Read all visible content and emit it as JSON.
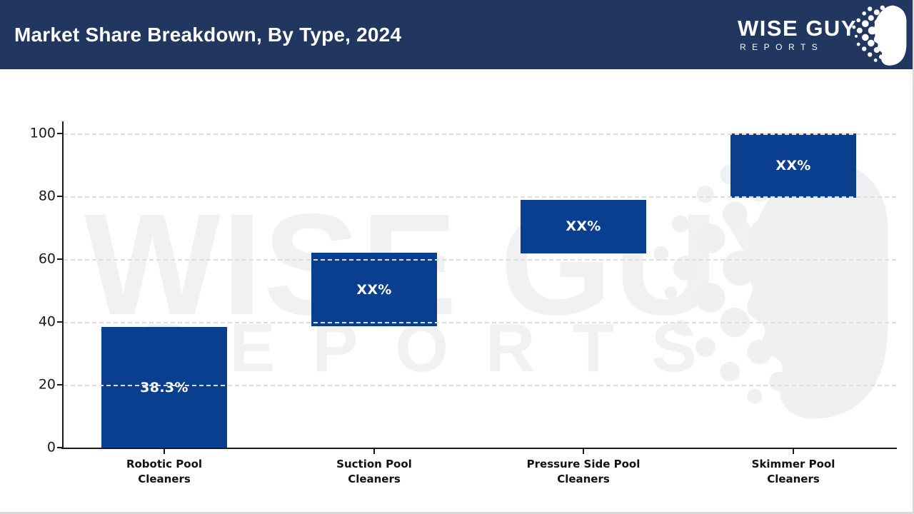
{
  "header": {
    "title": "Market Share Breakdown, By Type, 2024"
  },
  "brand": {
    "name": "WISE GUY",
    "sub": "REPORTS"
  },
  "watermark": {
    "line1": "WISE GUY",
    "line2": "REPORTS"
  },
  "chart_data": {
    "type": "bar",
    "subtype": "waterfall",
    "title": "Market Share Breakdown, By Type, 2024",
    "xlabel": "",
    "ylabel": "",
    "ylim": [
      0,
      100
    ],
    "yticks": [
      0,
      20,
      40,
      60,
      80,
      100
    ],
    "grid": "horizontal dashed",
    "legend": "none",
    "bar_color": "#0a3f8f",
    "value_label_color": "#ffffff",
    "categories": [
      "Robotic Pool\nCleaners",
      "Suction Pool\nCleaners",
      "Pressure Side Pool\nCleaners",
      "Skimmer Pool\nCleaners"
    ],
    "series": [
      {
        "name": "Market Share",
        "segments": [
          {
            "category": "Robotic Pool Cleaners",
            "start": 0,
            "end": 38.3,
            "label": "38.3%"
          },
          {
            "category": "Suction Pool Cleaners",
            "start": 38.6,
            "end": 62,
            "label": "XX%"
          },
          {
            "category": "Pressure Side Pool Cleaners",
            "start": 61.8,
            "end": 78.9,
            "label": "XX%"
          },
          {
            "category": "Skimmer Pool Cleaners",
            "start": 79.5,
            "end": 100,
            "label": "XX%"
          }
        ]
      }
    ]
  }
}
